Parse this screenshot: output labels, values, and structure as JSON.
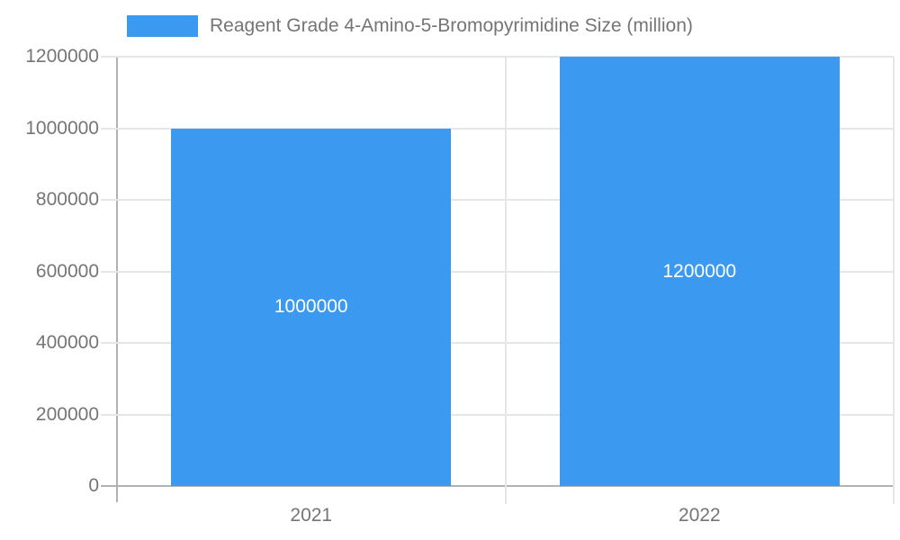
{
  "legend": {
    "label": "Reagent Grade 4-Amino-5-Bromopyrimidine Size (million)"
  },
  "chart_data": {
    "type": "bar",
    "title": "Reagent Grade 4-Amino-5-Bromopyrimidine Size (million)",
    "categories": [
      "2021",
      "2022"
    ],
    "values": [
      1000000,
      1200000
    ],
    "bar_labels": [
      "1000000",
      "1200000"
    ],
    "y_ticks": [
      0,
      200000,
      400000,
      600000,
      800000,
      1000000,
      1200000
    ],
    "y_tick_labels": [
      "0",
      "200000",
      "400000",
      "600000",
      "800000",
      "1000000",
      "1200000"
    ],
    "ylim": [
      0,
      1200000
    ],
    "xlabel": "",
    "ylabel": "",
    "grid": true,
    "legend_position": "top",
    "colors": {
      "bar": "#3b99ef",
      "grid": "#e6e6e6",
      "axis": "#b2b2b2",
      "text": "#757575",
      "bar_label": "#ffffff",
      "background": "#ffffff"
    }
  }
}
